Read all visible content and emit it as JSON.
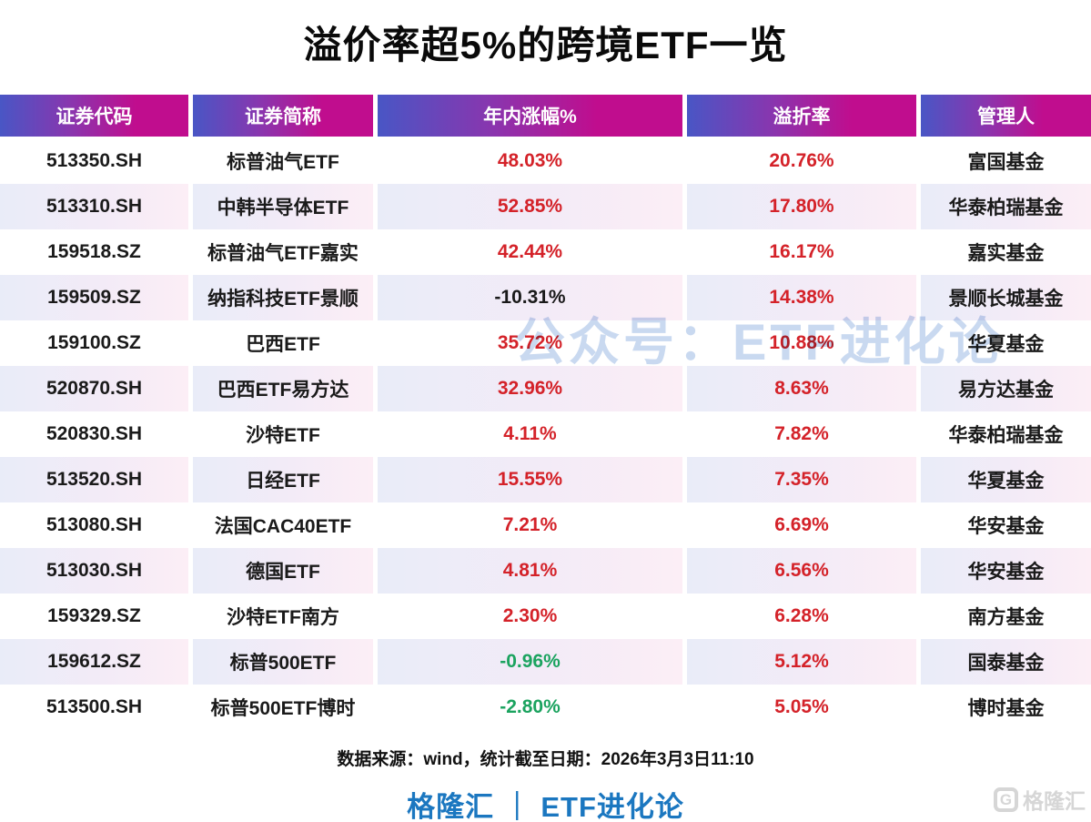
{
  "title": "溢价率超5%的跨境ETF一览",
  "table": {
    "columns": [
      "证券代码",
      "证券简称",
      "年内涨幅%",
      "溢折率",
      "管理人"
    ],
    "rows": [
      {
        "code": "513350.SH",
        "name": "标普油气ETF",
        "ytd": "48.03%",
        "ytd_color": "red",
        "premium": "20.76%",
        "manager": "富国基金"
      },
      {
        "code": "513310.SH",
        "name": "中韩半导体ETF",
        "ytd": "52.85%",
        "ytd_color": "red",
        "premium": "17.80%",
        "manager": "华泰柏瑞基金"
      },
      {
        "code": "159518.SZ",
        "name": "标普油气ETF嘉实",
        "ytd": "42.44%",
        "ytd_color": "red",
        "premium": "16.17%",
        "manager": "嘉实基金"
      },
      {
        "code": "159509.SZ",
        "name": "纳指科技ETF景顺",
        "ytd": "-10.31%",
        "ytd_color": "black",
        "premium": "14.38%",
        "manager": "景顺长城基金"
      },
      {
        "code": "159100.SZ",
        "name": "巴西ETF",
        "ytd": "35.72%",
        "ytd_color": "red",
        "premium": "10.88%",
        "manager": "华夏基金"
      },
      {
        "code": "520870.SH",
        "name": "巴西ETF易方达",
        "ytd": "32.96%",
        "ytd_color": "red",
        "premium": "8.63%",
        "manager": "易方达基金"
      },
      {
        "code": "520830.SH",
        "name": "沙特ETF",
        "ytd": "4.11%",
        "ytd_color": "red",
        "premium": "7.82%",
        "manager": "华泰柏瑞基金"
      },
      {
        "code": "513520.SH",
        "name": "日经ETF",
        "ytd": "15.55%",
        "ytd_color": "red",
        "premium": "7.35%",
        "manager": "华夏基金"
      },
      {
        "code": "513080.SH",
        "name": "法国CAC40ETF",
        "ytd": "7.21%",
        "ytd_color": "red",
        "premium": "6.69%",
        "manager": "华安基金"
      },
      {
        "code": "513030.SH",
        "name": "德国ETF",
        "ytd": "4.81%",
        "ytd_color": "red",
        "premium": "6.56%",
        "manager": "华安基金"
      },
      {
        "code": "159329.SZ",
        "name": "沙特ETF南方",
        "ytd": "2.30%",
        "ytd_color": "red",
        "premium": "6.28%",
        "manager": "南方基金"
      },
      {
        "code": "159612.SZ",
        "name": "标普500ETF",
        "ytd": "-0.96%",
        "ytd_color": "green",
        "premium": "5.12%",
        "manager": "国泰基金"
      },
      {
        "code": "513500.SH",
        "name": "标普500ETF博时",
        "ytd": "-2.80%",
        "ytd_color": "green",
        "premium": "5.05%",
        "manager": "博时基金"
      }
    ]
  },
  "chart_data": {
    "type": "table",
    "title": "溢价率超5%的跨境ETF一览",
    "columns": [
      "证券代码",
      "证券简称",
      "年内涨幅%",
      "溢折率",
      "管理人"
    ],
    "rows": [
      [
        "513350.SH",
        "标普油气ETF",
        "48.03%",
        "20.76%",
        "富国基金"
      ],
      [
        "513310.SH",
        "中韩半导体ETF",
        "52.85%",
        "17.80%",
        "华泰柏瑞基金"
      ],
      [
        "159518.SZ",
        "标普油气ETF嘉实",
        "42.44%",
        "16.17%",
        "嘉实基金"
      ],
      [
        "159509.SZ",
        "纳指科技ETF景顺",
        "-10.31%",
        "14.38%",
        "景顺长城基金"
      ],
      [
        "159100.SZ",
        "巴西ETF",
        "35.72%",
        "10.88%",
        "华夏基金"
      ],
      [
        "520870.SH",
        "巴西ETF易方达",
        "32.96%",
        "8.63%",
        "易方达基金"
      ],
      [
        "520830.SH",
        "沙特ETF",
        "4.11%",
        "7.82%",
        "华泰柏瑞基金"
      ],
      [
        "513520.SH",
        "日经ETF",
        "15.55%",
        "7.35%",
        "华夏基金"
      ],
      [
        "513080.SH",
        "法国CAC40ETF",
        "7.21%",
        "6.69%",
        "华安基金"
      ],
      [
        "513030.SH",
        "德国ETF",
        "4.81%",
        "6.56%",
        "华安基金"
      ],
      [
        "159329.SZ",
        "沙特ETF南方",
        "2.30%",
        "6.28%",
        "南方基金"
      ],
      [
        "159612.SZ",
        "标普500ETF",
        "-0.96%",
        "5.12%",
        "国泰基金"
      ],
      [
        "513500.SH",
        "标普500ETF博时",
        "-2.80%",
        "5.05%",
        "博时基金"
      ]
    ]
  },
  "footer": {
    "source": "数据来源：wind，统计截至日期：2026年3月3日11:10",
    "brand": "格隆汇 ｜ ETF进化论"
  },
  "watermark": {
    "text": "公众号：ETF进化论"
  },
  "corner_logo": {
    "glyph": "G",
    "text": "格隆汇"
  },
  "colors": {
    "header_start": "#4956c5",
    "header_end": "#c00d8e",
    "row_alt_start": "#e9ecf8",
    "row_alt_end": "#fceef6",
    "red": "#d42229",
    "green": "#1ba35f",
    "black": "#1a1a1a",
    "brand_blue": "#1b77c0",
    "watermark_blue": "#c9d9f0",
    "logo_gray": "#d6d6d6"
  }
}
